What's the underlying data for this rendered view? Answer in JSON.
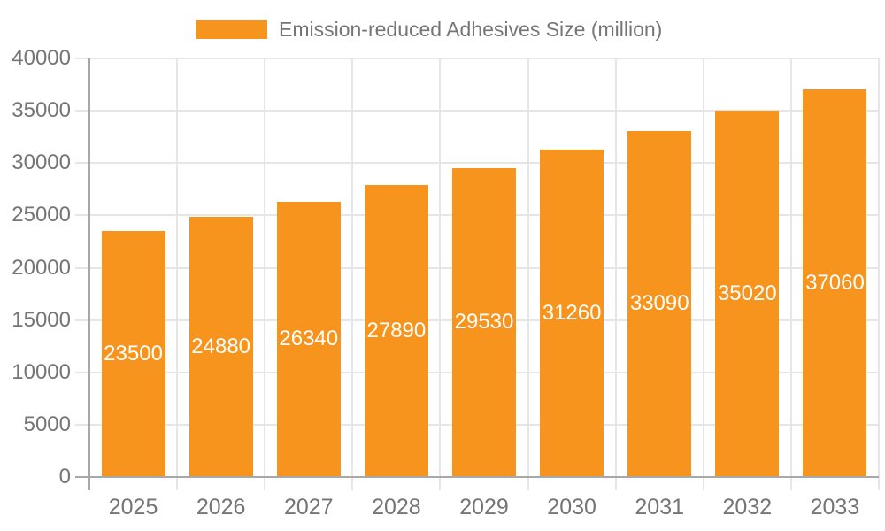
{
  "chart_data": {
    "type": "bar",
    "title": "",
    "legend": {
      "label": "Emission-reduced Adhesives Size (million)",
      "position": "top"
    },
    "categories": [
      "2025",
      "2026",
      "2027",
      "2028",
      "2029",
      "2030",
      "2031",
      "2032",
      "2033"
    ],
    "series": [
      {
        "name": "Emission-reduced Adhesives Size (million)",
        "values": [
          23500,
          24880,
          26340,
          27890,
          29530,
          31260,
          33090,
          35020,
          37060
        ]
      }
    ],
    "xlabel": "",
    "ylabel": "",
    "ylim": [
      0,
      40000
    ],
    "yticks": [
      0,
      5000,
      10000,
      15000,
      20000,
      25000,
      30000,
      35000,
      40000
    ],
    "grid": true,
    "colors": {
      "bar": "#f7941e",
      "value_label": "#ffffff",
      "axis_text": "#757575",
      "axis_line": "#a8a8a8",
      "gridline": "#e6e6e6"
    }
  }
}
